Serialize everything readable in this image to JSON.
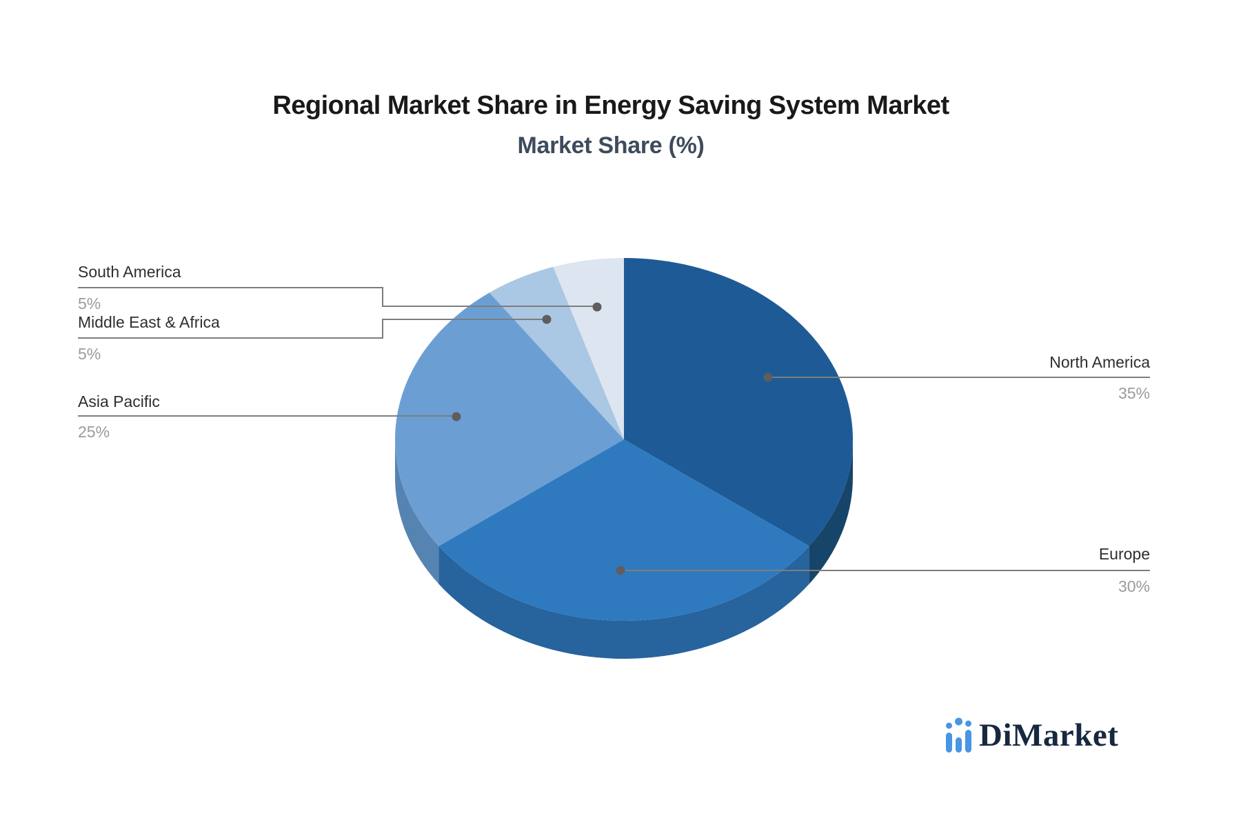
{
  "chart_data": {
    "type": "pie",
    "title": "Regional Market Share in Energy Saving System Market",
    "subtitle": "Market Share (%)",
    "unit": "%",
    "start_angle_deg": 0,
    "direction": "clockwise",
    "effect": "3d",
    "slices": [
      {
        "label": "North America",
        "value": 35,
        "pct": "35%",
        "color": "#1e5b96",
        "side_color": "#164569"
      },
      {
        "label": "Europe",
        "value": 30,
        "pct": "30%",
        "color": "#2f7abf",
        "side_color": "#27639c"
      },
      {
        "label": "Asia Pacific",
        "value": 25,
        "pct": "25%",
        "color": "#6b9fd4",
        "side_color": "#5583b2"
      },
      {
        "label": "Middle East & Africa",
        "value": 5,
        "pct": "5%",
        "color": "#aac7e4",
        "side_color": "#8fb3d6"
      },
      {
        "label": "South America",
        "value": 5,
        "pct": "5%",
        "color": "#dde5f0",
        "side_color": "#c4cfdd"
      }
    ],
    "style": {
      "title_color": "#191919",
      "subtitle_color": "#3d4b5c",
      "label_color": "#2e2e2e",
      "pct_color": "#9b9b9b",
      "leader_line_color": "#7d7d7d",
      "dot_color": "#5e5e5e",
      "background": "#ffffff"
    }
  },
  "logo": {
    "text": "DiMarket",
    "text_color": "#17283f",
    "icon": "bar-chart-icon",
    "icon_color": "#4796e3"
  }
}
